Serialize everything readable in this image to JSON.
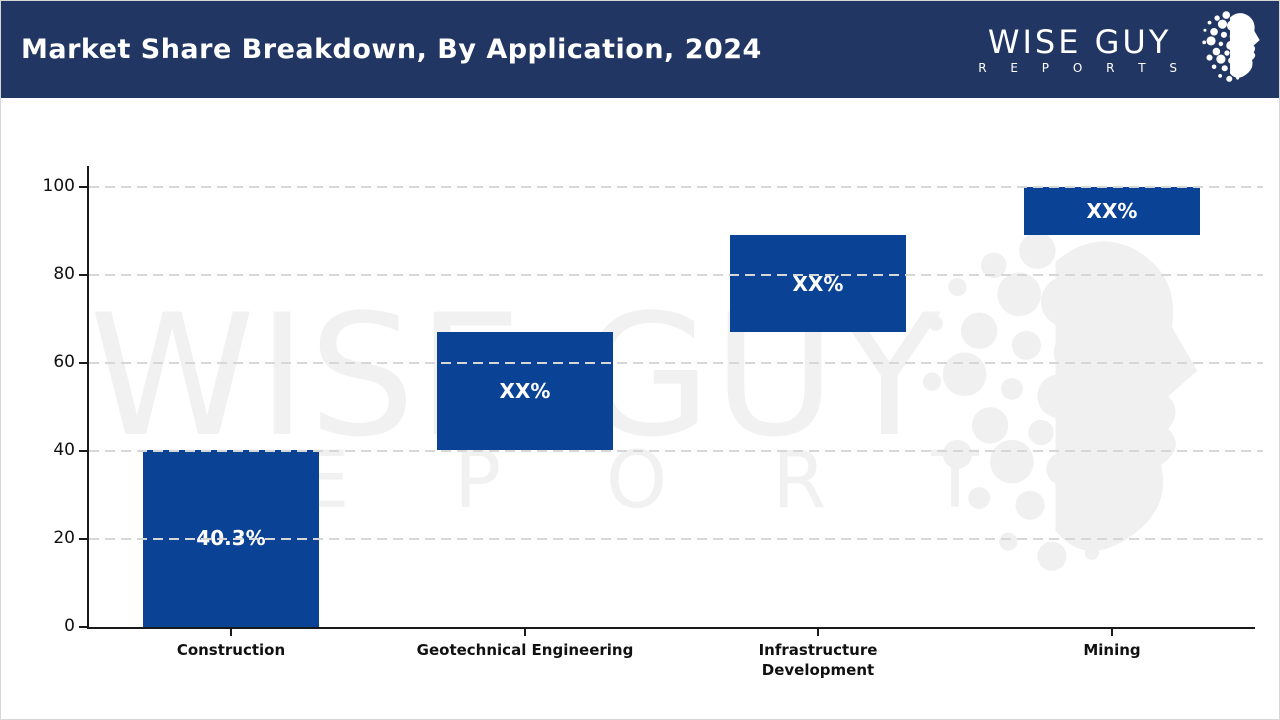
{
  "header": {
    "title": "Market Share Breakdown, By Application, 2024",
    "logo": {
      "line1": "WISE GUY",
      "line2": "R E P O R T S"
    }
  },
  "watermark": {
    "line1": "WISE GUY",
    "line2": "R E P O R T S"
  },
  "colors": {
    "header_bg": "#213663",
    "bar_blue": "#0a4296",
    "grid_gray": "#d7d7d7",
    "watermark_gray": "#f0f0f0"
  },
  "chart_data": {
    "type": "bar",
    "variant": "waterfall",
    "title": "Market Share Breakdown, By Application, 2024",
    "categories": [
      "Construction",
      "Geotechnical Engineering",
      "Infrastructure Development",
      "Mining"
    ],
    "segments": [
      {
        "category": "Construction",
        "label": "40.3%",
        "start": 0,
        "end": 40.3
      },
      {
        "category": "Geotechnical Engineering",
        "label": "XX%",
        "start": 40.3,
        "end": 67
      },
      {
        "category": "Infrastructure Development",
        "label": "XX%",
        "start": 67,
        "end": 89
      },
      {
        "category": "Mining",
        "label": "XX%",
        "start": 89,
        "end": 100
      }
    ],
    "bar_labels": [
      "40.3%",
      "XX%",
      "XX%",
      "XX%"
    ],
    "yticks": [
      0,
      20,
      40,
      60,
      80,
      100
    ],
    "ylim": [
      0,
      105
    ],
    "xlabel": "",
    "ylabel": "",
    "grid": "horizontal-dashed-over-bars",
    "legend": "none",
    "bar_color": "#0a4296",
    "bar_label_color": "#ffffff"
  }
}
